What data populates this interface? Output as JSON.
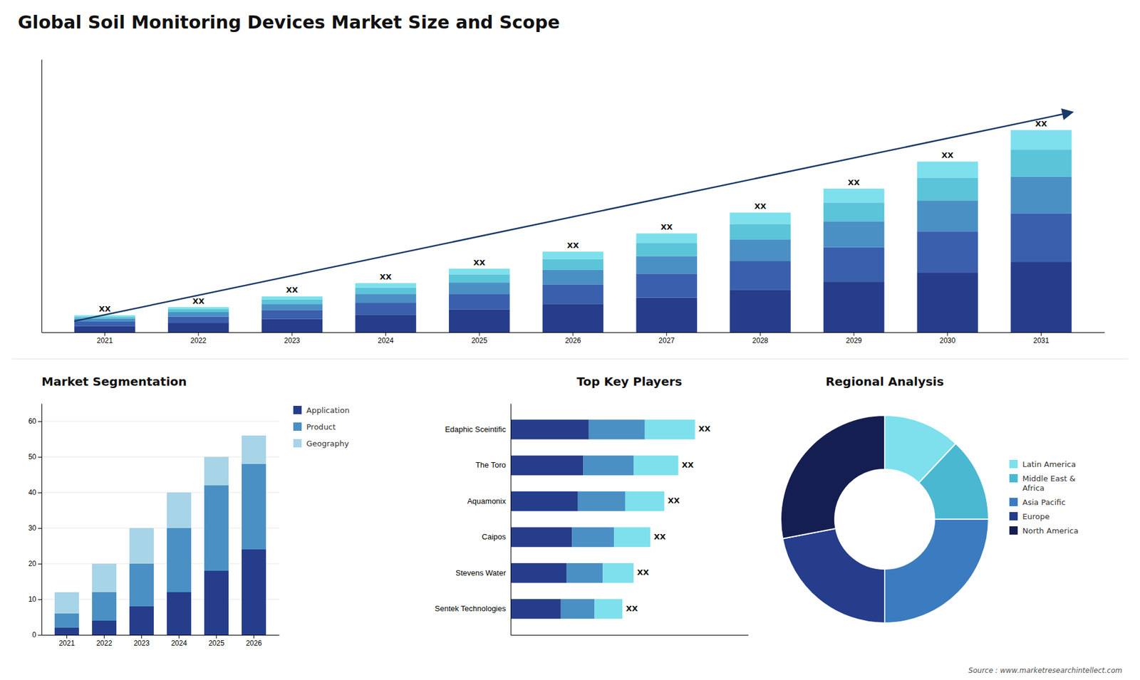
{
  "chart_data": [
    {
      "type": "bar",
      "title": "Global Soil Monitoring Devices Market Size and Scope",
      "categories": [
        "2021",
        "2022",
        "2023",
        "2024",
        "2025",
        "2026",
        "2027",
        "2028",
        "2029",
        "2030",
        "2031"
      ],
      "series": [
        {
          "color": "#253d8a",
          "values": [
            1.0,
            1.5,
            2.1,
            2.8,
            3.6,
            4.5,
            5.5,
            6.7,
            8.0,
            9.5,
            11.2
          ]
        },
        {
          "color": "#3a5fad",
          "values": [
            0.7,
            1.0,
            1.4,
            1.9,
            2.5,
            3.1,
            3.8,
            4.6,
            5.5,
            6.5,
            7.7
          ]
        },
        {
          "color": "#4a90c4",
          "values": [
            0.5,
            0.7,
            1.0,
            1.4,
            1.8,
            2.3,
            2.8,
            3.4,
            4.1,
            4.9,
            5.8
          ]
        },
        {
          "color": "#5bc4d8",
          "values": [
            0.3,
            0.5,
            0.7,
            1.0,
            1.3,
            1.7,
            2.1,
            2.5,
            3.0,
            3.6,
            4.3
          ]
        },
        {
          "color": "#7de0ec",
          "values": [
            0.2,
            0.3,
            0.5,
            0.7,
            0.9,
            1.2,
            1.5,
            1.8,
            2.2,
            2.6,
            3.1
          ]
        }
      ],
      "stacked": true,
      "ylim": [
        0,
        43.335
      ],
      "tick_labels": "x",
      "annotations": [
        "XX",
        "XX",
        "XX",
        "XX",
        "XX",
        "XX",
        "XX",
        "XX",
        "XX",
        "XX",
        "XX"
      ]
    },
    {
      "type": "bar",
      "title": "Market Segmentation",
      "categories": [
        "2021",
        "2022",
        "2023",
        "2024",
        "2025",
        "2026"
      ],
      "series": [
        {
          "name": "Application",
          "color": "#253d8a",
          "values": [
            2,
            4,
            8,
            12,
            18,
            24
          ]
        },
        {
          "name": "Product",
          "color": "#4a90c4",
          "values": [
            4,
            8,
            12,
            18,
            24,
            24
          ]
        },
        {
          "name": "Geography",
          "color": "#a8d4e8",
          "values": [
            6,
            8,
            10,
            10,
            8,
            8
          ]
        }
      ],
      "stacked": true,
      "ylim": [
        0,
        65
      ],
      "yticks": [
        0,
        10,
        20,
        30,
        40,
        50,
        60
      ],
      "grid": true,
      "legend": "right"
    },
    {
      "type": "bar",
      "title": "Top Key Players",
      "orientation": "horizontal",
      "categories": [
        "Edaphic Sceintific",
        "The Toro",
        "Aquamonix",
        "Caipos",
        "Stevens Water",
        "Sentek Technologies"
      ],
      "series": [
        {
          "color": "#253d8a",
          "values": [
            0.28,
            0.26,
            0.24,
            0.22,
            0.2,
            0.18
          ]
        },
        {
          "color": "#4a90c4",
          "values": [
            0.2,
            0.18,
            0.17,
            0.15,
            0.13,
            0.12
          ]
        },
        {
          "color": "#7de0ec",
          "values": [
            0.18,
            0.16,
            0.14,
            0.13,
            0.11,
            0.1
          ]
        }
      ],
      "stacked": true,
      "xlim": [
        0,
        0.85
      ],
      "tick_labels": "y",
      "annotations": [
        "XX",
        "XX",
        "XX",
        "XX",
        "XX",
        "XX"
      ]
    },
    {
      "type": "donut",
      "title": "Regional Analysis",
      "categories": [
        "Latin America",
        "Middle East &\nAfrica",
        "Asia Pacific",
        "Europe",
        "North America"
      ],
      "values": [
        12,
        13,
        25,
        22,
        28
      ],
      "colors": [
        "#7de0ec",
        "#4ab8d0",
        "#3a7cbf",
        "#253d8a",
        "#151e50"
      ],
      "legend": "right",
      "annotations": [
        "Source : www.marketresearchintellect.com"
      ]
    }
  ]
}
